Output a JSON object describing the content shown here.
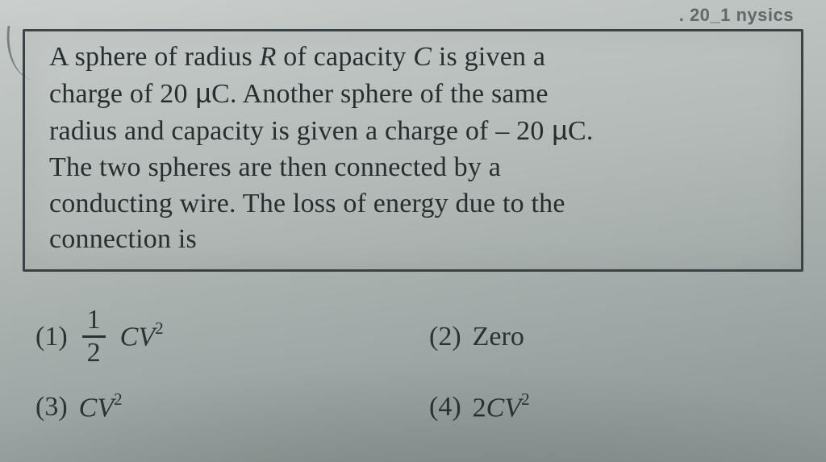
{
  "header_fragment": ". 20_1 nysics",
  "question": {
    "line1_pre": "A sphere of radius ",
    "R": "R",
    "line1_mid": " of capacity ",
    "C": "C",
    "line1_post": " is given a",
    "line2_pre": "charge of 20",
    "mu1": " µ",
    "line2_mid": "C. Another sphere of the same",
    "line3_pre": "radius and capacity is given a charge of – 20",
    "mu2": " µ",
    "line3_post": "C.",
    "line4": "The two spheres are then connected by a",
    "line5": "conducting wire. The loss of energy due to the",
    "line6": "connection is"
  },
  "options": {
    "o1": {
      "num": "(1)",
      "half_top": "1",
      "half_bot": "2",
      "cv": "CV",
      "sq": "2"
    },
    "o2": {
      "num": "(2)",
      "text": "Zero"
    },
    "o3": {
      "num": "(3)",
      "cv": "CV",
      "sq": "2"
    },
    "o4": {
      "num": "(4)",
      "two": "2",
      "cv": "CV",
      "sq": "2"
    }
  },
  "style": {
    "text_color": "#272e30",
    "border_color": "#3b4244",
    "font_size_body": 34,
    "font_size_header": 22,
    "bg_gradient": [
      "#c7ccca",
      "#b3bab8",
      "#9fa8a6",
      "#8a9492"
    ]
  }
}
